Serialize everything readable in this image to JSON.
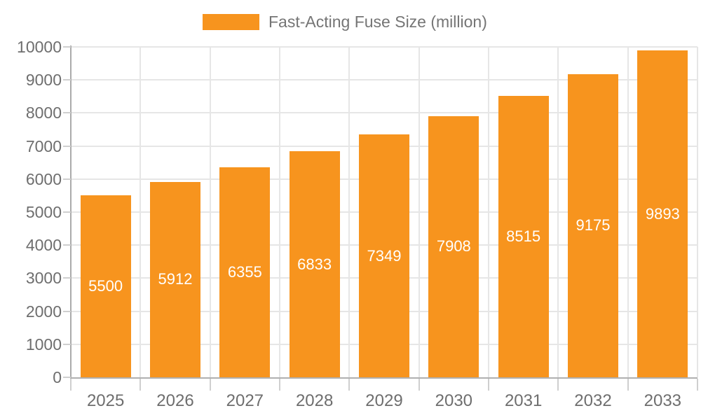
{
  "chart_data": {
    "type": "bar",
    "title": "Fast-Acting Fuse Size (million)",
    "legend_entries": [
      "Fast-Acting Fuse Size (million)"
    ],
    "legend_position": "top",
    "categories": [
      "2025",
      "2026",
      "2027",
      "2028",
      "2029",
      "2030",
      "2031",
      "2032",
      "2033"
    ],
    "series": [
      {
        "name": "Fast-Acting Fuse Size (million)",
        "values": [
          5500,
          5912,
          6355,
          6833,
          7349,
          7908,
          8515,
          9175,
          9893
        ]
      }
    ],
    "xlabel": "",
    "ylabel": "",
    "ylim": [
      0,
      10000
    ],
    "ytick_step": 1000,
    "ytick_labels": [
      "0",
      "1000",
      "2000",
      "3000",
      "4000",
      "5000",
      "6000",
      "7000",
      "8000",
      "9000",
      "10000"
    ],
    "grid": true,
    "value_labels_shown": true,
    "value_label_position": "inside-center",
    "colors": {
      "bar": "#F7941E",
      "value_label_text": "#FFFFFF",
      "axis_text": "#6E6E6E",
      "legend_text": "#757575",
      "grid_line": "#E6E6E6",
      "y_axis_line": "#ABABAB",
      "x_axis_line": "#B0B0B0",
      "tick": "#CFCFCF",
      "background": "#FFFFFF"
    }
  }
}
